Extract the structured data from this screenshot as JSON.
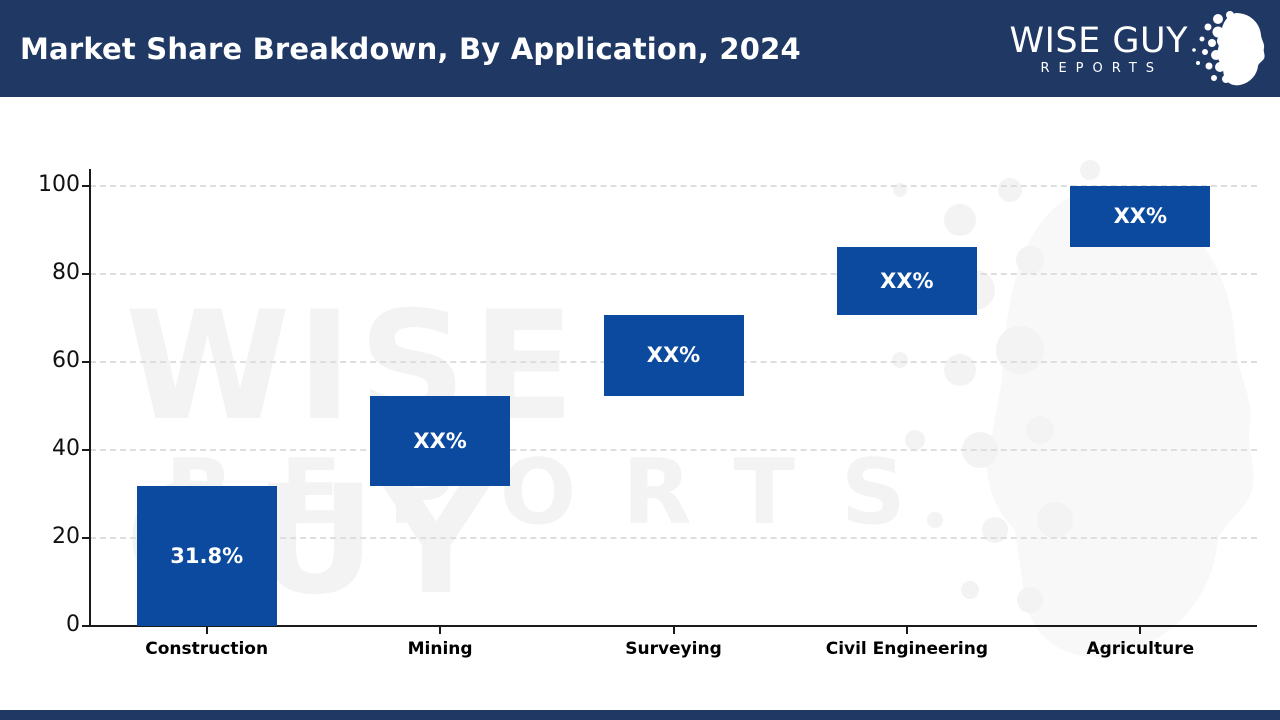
{
  "header": {
    "title": "Market Share Breakdown, By Application, 2024",
    "logo_line1": "WISE GUY",
    "logo_line2": "REPORTS",
    "bg_color": "#1f3864"
  },
  "watermark": {
    "line1": "WISE GUY",
    "line2": "REPORTS"
  },
  "chart_data": {
    "type": "bar",
    "subtype": "waterfall",
    "title": "Market Share Breakdown, By Application, 2024",
    "categories": [
      "Construction",
      "Mining",
      "Surveying",
      "Civil Engineering",
      "Agriculture"
    ],
    "bar_labels": [
      "31.8%",
      "XX%",
      "XX%",
      "XX%",
      "XX%"
    ],
    "bar_ranges": [
      [
        0,
        31.8
      ],
      [
        31.8,
        52.3
      ],
      [
        52.3,
        70.7
      ],
      [
        70.7,
        86.2
      ],
      [
        86.2,
        100
      ]
    ],
    "segment_values": [
      31.8,
      20.5,
      18.4,
      15.5,
      13.8
    ],
    "y_ticks": [
      "0",
      "20",
      "40",
      "60",
      "80",
      "100"
    ],
    "ylim": [
      0,
      103.5
    ],
    "xlabel": "",
    "ylabel": "",
    "grid": "horizontal-dashed",
    "legend": "none",
    "bar_color": "#0b4a9f"
  },
  "footer": {
    "bg_color": "#1f3864"
  }
}
